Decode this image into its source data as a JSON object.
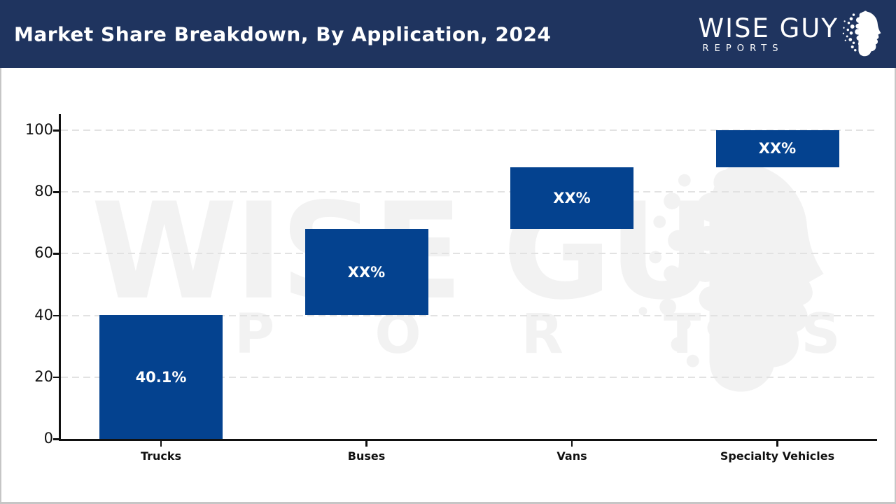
{
  "header": {
    "title": "Market Share Breakdown, By Application, 2024",
    "bg_color": "#1f345f",
    "logo": {
      "line1": "WISE GUY",
      "line2": "REPORTS"
    }
  },
  "watermark": {
    "line1": "WISE GU",
    "line2": "P O R T S"
  },
  "chart_data": {
    "type": "bar",
    "subtype": "waterfall",
    "title": "Market Share Breakdown, By Application, 2024",
    "categories": [
      "Trucks",
      "Buses",
      "Vans",
      "Specialty Vehicles"
    ],
    "segments": [
      {
        "category": "Trucks",
        "start": 0,
        "end": 40.1,
        "label": "40.1%"
      },
      {
        "category": "Buses",
        "start": 40.1,
        "end": 68,
        "label": "XX%"
      },
      {
        "category": "Vans",
        "start": 68,
        "end": 88,
        "label": "XX%"
      },
      {
        "category": "Specialty Vehicles",
        "start": 88,
        "end": 100,
        "label": "XX%"
      }
    ],
    "yticks": [
      0,
      20,
      40,
      60,
      80,
      100
    ],
    "ylim": [
      0,
      105
    ],
    "grid": "dashed-horizontal",
    "legend": "none",
    "bar_color": "#04428f",
    "bar_label_color": "#ffffff",
    "axis_color": "#111111",
    "grid_color": "#e2e2e2"
  }
}
